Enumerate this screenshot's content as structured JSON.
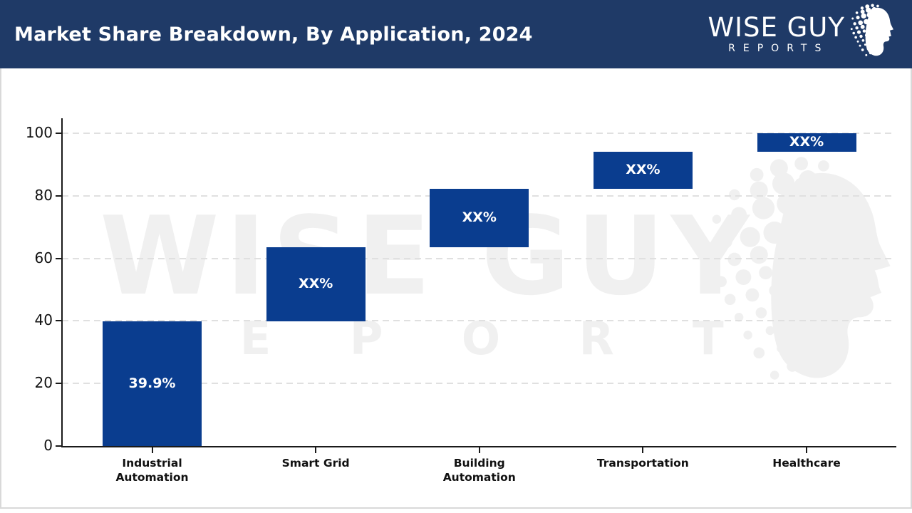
{
  "header": {
    "title": "Market Share Breakdown, By Application, 2024",
    "bg_color": "#1f3a67",
    "logo": {
      "line1": "WISE GUY",
      "line2": "REPORTS"
    }
  },
  "watermark": {
    "line1": "WISE GUY",
    "line2": "R E P O R T S"
  },
  "chart_data": {
    "type": "bar",
    "variant": "waterfall",
    "title": "Market Share Breakdown, By Application, 2024",
    "categories": [
      "Industrial Automation",
      "Smart Grid",
      "Building Automation",
      "Transportation",
      "Healthcare"
    ],
    "segments": [
      {
        "category": "Industrial Automation",
        "start": 0,
        "end": 39.9,
        "value": 39.9,
        "bar_label": "39.9%"
      },
      {
        "category": "Smart Grid",
        "start": 39.9,
        "end": 63.6,
        "value": 23.7,
        "bar_label": "XX%"
      },
      {
        "category": "Building Automation",
        "start": 63.6,
        "end": 82.3,
        "value": 18.7,
        "bar_label": "XX%"
      },
      {
        "category": "Transportation",
        "start": 82.3,
        "end": 94.1,
        "value": 11.8,
        "bar_label": "XX%"
      },
      {
        "category": "Healthcare",
        "start": 94.1,
        "end": 100.0,
        "value": 5.9,
        "bar_label": "XX%"
      }
    ],
    "xlabel": "",
    "ylabel": "",
    "ylim": [
      0,
      100
    ],
    "yticks": [
      0,
      20,
      40,
      60,
      80,
      100
    ],
    "grid": "horizontal-dashed",
    "legend": "none",
    "bar_color": "#0a3d8f",
    "bar_label_color": "#ffffff",
    "axis_color": "#1a1a1a"
  }
}
